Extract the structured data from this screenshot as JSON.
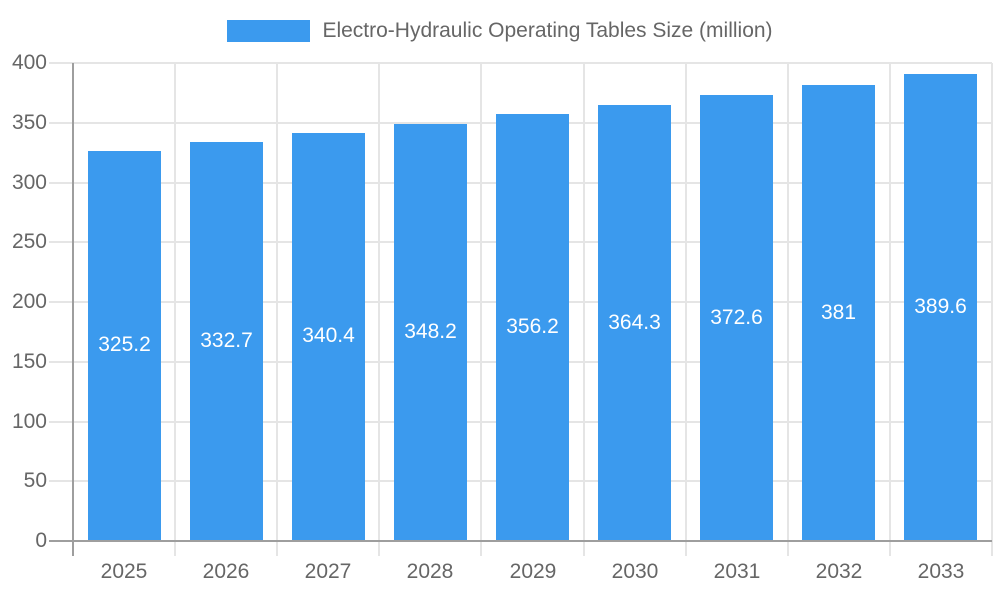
{
  "chart_data": {
    "type": "bar",
    "title": "Electro-Hydraulic Operating Tables Size (million)",
    "legend": {
      "position": "top",
      "label": "Electro-Hydraulic Operating Tables Size (million)"
    },
    "categories": [
      "2025",
      "2026",
      "2027",
      "2028",
      "2029",
      "2030",
      "2031",
      "2032",
      "2033"
    ],
    "series": [
      {
        "name": "Electro-Hydraulic Operating Tables Size (million)",
        "values": [
          325.2,
          332.7,
          340.4,
          348.2,
          356.2,
          364.3,
          372.6,
          381,
          389.6
        ]
      }
    ],
    "value_labels": [
      "325.2",
      "332.7",
      "340.4",
      "348.2",
      "356.2",
      "364.3",
      "372.6",
      "381",
      "389.6"
    ],
    "xlabel": "",
    "ylabel": "",
    "ylim": [
      0,
      400
    ],
    "ytick_step": 50,
    "yticks": [
      0,
      50,
      100,
      150,
      200,
      250,
      300,
      350,
      400
    ],
    "grid": true,
    "value_labels_position": "inside-center"
  },
  "style": {
    "bar_color": "#3b9aee",
    "grid_color": "#e5e5e5",
    "axis_color": "#9e9e9e",
    "text_color": "#666666",
    "value_label_color": "#ffffff",
    "background": "#ffffff"
  }
}
